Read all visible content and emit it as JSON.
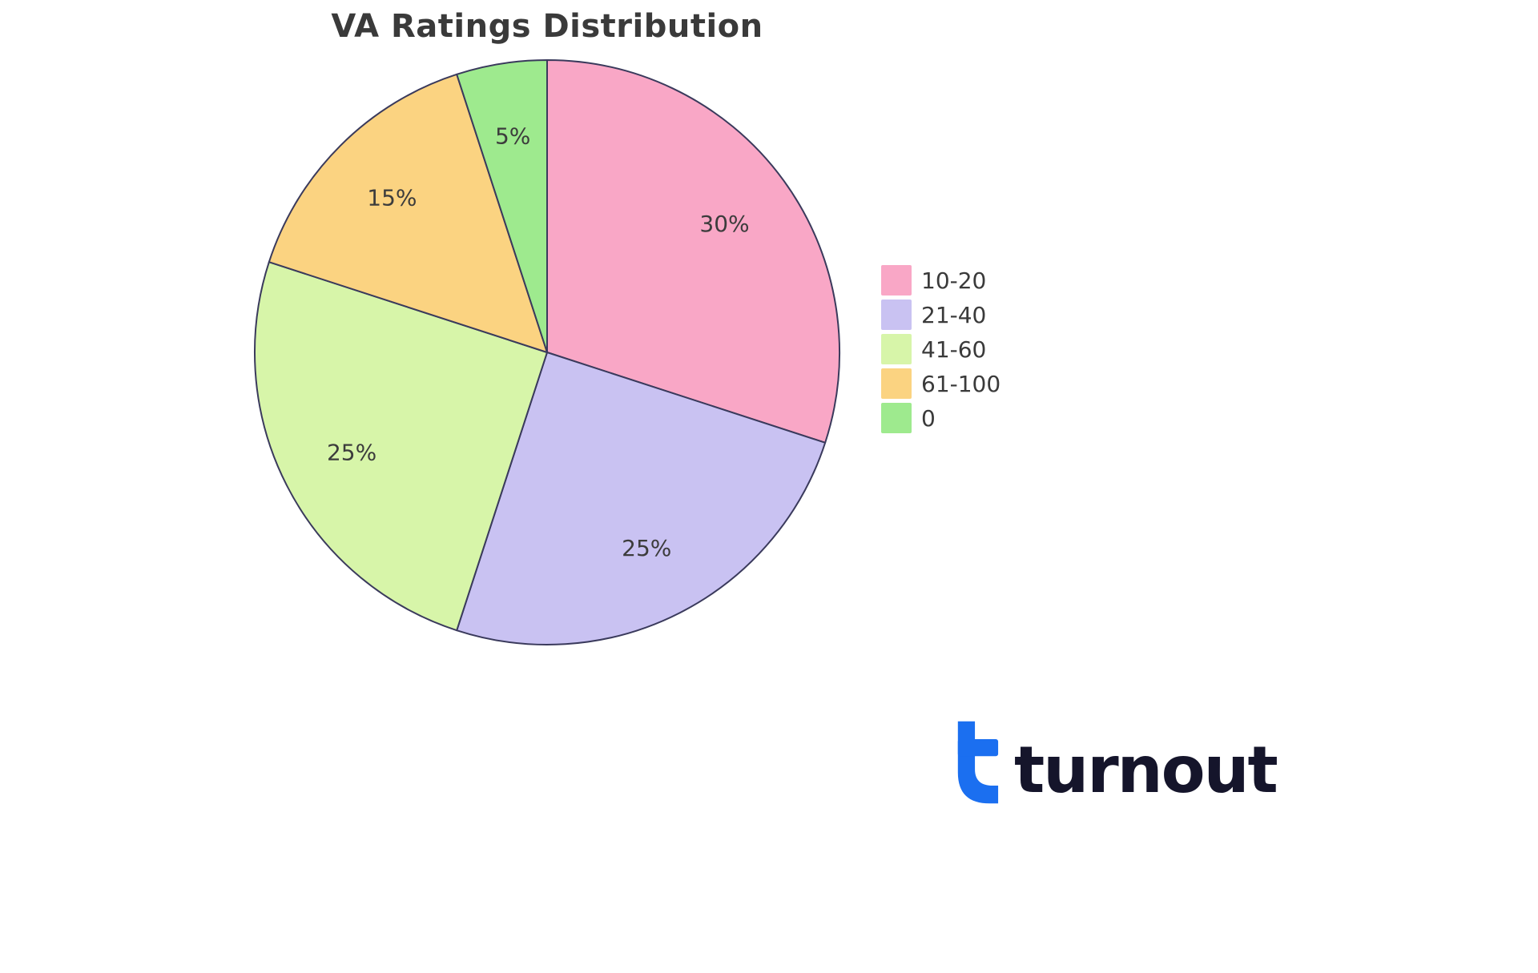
{
  "chart_data": {
    "type": "pie",
    "title": "VA Ratings Distribution",
    "direction": "clockwise",
    "start_angle_deg": 0,
    "legend_position": "right",
    "stroke_color": "#3a3a5c",
    "stroke_width": 2,
    "label_radius_ratio": 0.75,
    "slices": [
      {
        "label": "10-20",
        "value": 30,
        "pct_label": "30%",
        "color": "#f9a7c6"
      },
      {
        "label": "21-40",
        "value": 25,
        "pct_label": "25%",
        "color": "#c9c2f2"
      },
      {
        "label": "41-60",
        "value": 25,
        "pct_label": "25%",
        "color": "#d7f5a9"
      },
      {
        "label": "61-100",
        "value": 15,
        "pct_label": "15%",
        "color": "#fbd381"
      },
      {
        "label": "0",
        "value": 5,
        "pct_label": "5%",
        "color": "#9eea8e"
      }
    ]
  },
  "branding": {
    "logo_text": "turnout",
    "logo_color": "#1b6ff0"
  }
}
